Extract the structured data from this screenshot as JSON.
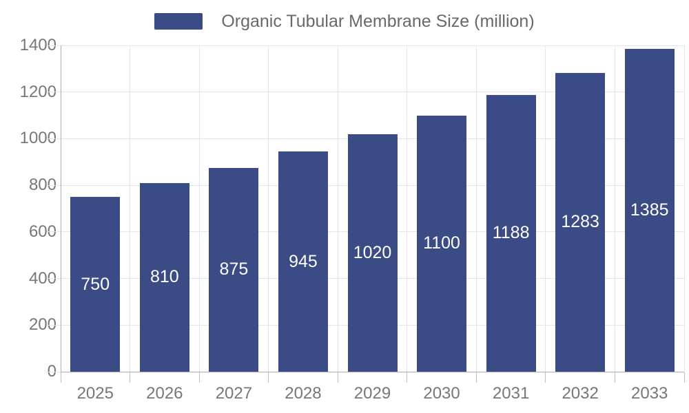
{
  "legend": {
    "label": "Organic Tubular Membrane Size (million)"
  },
  "colors": {
    "bar": "#3a4b86",
    "value_label": "#ffffff",
    "legend_text": "#66696e",
    "axis_label": "#75777b",
    "grid_line": "#e2e4e9",
    "axis_line": "#aaadb2",
    "x_tick": "#bcbfc4",
    "background": "#ffffff"
  },
  "chart_data": {
    "type": "bar",
    "title": "Organic Tubular Membrane Size (million)",
    "categories": [
      "2025",
      "2026",
      "2027",
      "2028",
      "2029",
      "2030",
      "2031",
      "2032",
      "2033"
    ],
    "values": [
      750,
      810,
      875,
      945,
      1020,
      1100,
      1188,
      1283,
      1385
    ],
    "series_name": "Organic Tubular Membrane Size (million)",
    "xlabel": "",
    "ylabel": "",
    "ylim": [
      0,
      1400
    ],
    "y_ticks": [
      0,
      200,
      400,
      600,
      800,
      1000,
      1200,
      1400
    ],
    "grid": true,
    "legend_position": "top-center",
    "value_labels": "inside-center-white"
  }
}
